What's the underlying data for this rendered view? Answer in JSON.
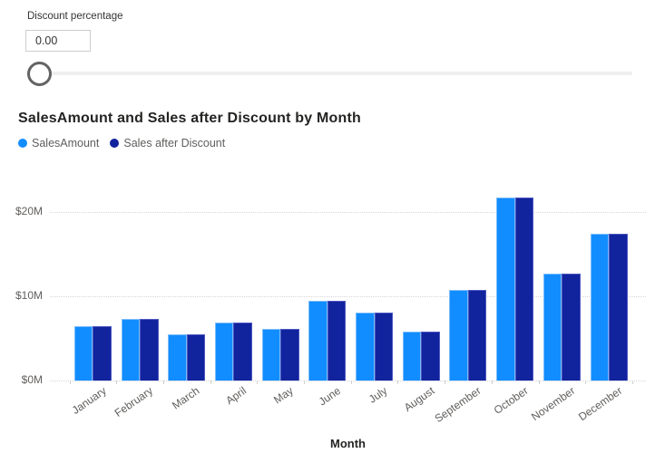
{
  "slicer": {
    "label": "Discount percentage",
    "input_value": "0.00",
    "slider_position": "min"
  },
  "chart_data": {
    "type": "bar",
    "title": "SalesAmount and Sales after Discount by Month",
    "xlabel": "Month",
    "ylabel": "",
    "unit": "USD millions",
    "categories": [
      "January",
      "February",
      "March",
      "April",
      "May",
      "June",
      "July",
      "August",
      "September",
      "October",
      "November",
      "December"
    ],
    "series": [
      {
        "name": "SalesAmount",
        "color": "#118DFF",
        "border_color": "#7cbcfa",
        "values": [
          6.5,
          7.3,
          5.5,
          6.9,
          6.1,
          9.5,
          8.1,
          5.8,
          10.8,
          21.7,
          12.7,
          17.4
        ]
      },
      {
        "name": "Sales after Discount",
        "color": "#12239E",
        "border_color": "#4d58c0",
        "values": [
          6.5,
          7.3,
          5.5,
          6.9,
          6.1,
          9.5,
          8.1,
          5.8,
          10.8,
          21.7,
          12.7,
          17.4
        ]
      }
    ],
    "y_ticks": [
      {
        "label": "$0M",
        "value": 0
      },
      {
        "label": "$10M",
        "value": 10
      },
      {
        "label": "$20M",
        "value": 20
      }
    ],
    "ylim": [
      0,
      24.2
    ],
    "grid": "horizontal-dotted",
    "legend_position": "top-left"
  }
}
